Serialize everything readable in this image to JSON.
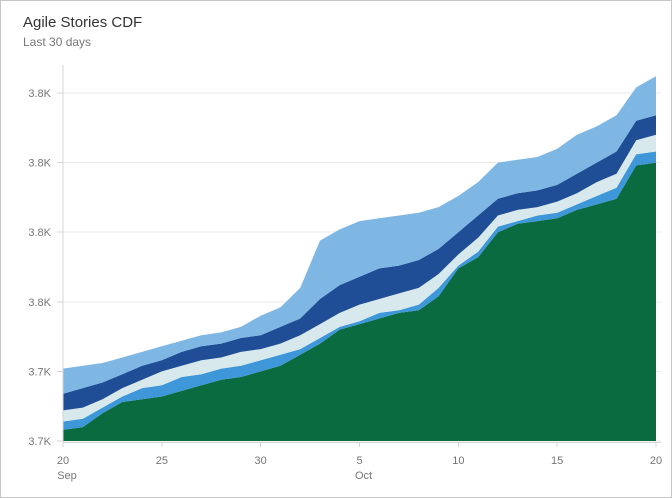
{
  "card": {
    "title": "Agile Stories CDF",
    "subtitle": "Last 30 days"
  },
  "chart_data": {
    "type": "area",
    "stacked": true,
    "title": "Agile Stories CDF",
    "subtitle": "Last 30 days",
    "legend": false,
    "grid": true,
    "x": [
      "Sep 20",
      "Sep 21",
      "Sep 22",
      "Sep 23",
      "Sep 24",
      "Sep 25",
      "Sep 26",
      "Sep 27",
      "Sep 28",
      "Sep 29",
      "Sep 30",
      "Oct 1",
      "Oct 2",
      "Oct 3",
      "Oct 4",
      "Oct 5",
      "Oct 6",
      "Oct 7",
      "Oct 8",
      "Oct 9",
      "Oct 10",
      "Oct 11",
      "Oct 12",
      "Oct 13",
      "Oct 14",
      "Oct 15",
      "Oct 16",
      "Oct 17",
      "Oct 18",
      "Oct 19",
      "Oct 20"
    ],
    "stacking": "cumulative_values are the running stacked totals of each band, bottom band first; baseline is y_axis.min",
    "series": [
      {
        "id": "band-1-dark-green",
        "color": "#0A6A40",
        "cumulative_values": [
          3704,
          3705,
          3710,
          3714,
          3715,
          3716,
          3718,
          3720,
          3722,
          3723,
          3725,
          3727,
          3731,
          3735,
          3740,
          3742,
          3744,
          3746,
          3747,
          3752,
          3762,
          3766,
          3775,
          3778,
          3779,
          3780,
          3783,
          3785,
          3787,
          3799,
          3800
        ]
      },
      {
        "id": "band-2-bright-blue",
        "color": "#3E97D9",
        "cumulative_values": [
          3707,
          3708,
          3712,
          3716,
          3719,
          3720,
          3723,
          3724,
          3726,
          3727,
          3729,
          3731,
          3733,
          3737,
          3741,
          3743,
          3746,
          3747,
          3749,
          3755,
          3763,
          3768,
          3777,
          3779,
          3781,
          3782,
          3785,
          3788,
          3791,
          3803,
          3804
        ]
      },
      {
        "id": "band-3-pale-blue",
        "color": "#D8E9EE",
        "cumulative_values": [
          3711,
          3712,
          3715,
          3719,
          3722,
          3725,
          3727,
          3729,
          3730,
          3732,
          3733,
          3735,
          3738,
          3742,
          3746,
          3749,
          3751,
          3753,
          3755,
          3760,
          3767,
          3773,
          3781,
          3783,
          3784,
          3786,
          3789,
          3793,
          3796,
          3808,
          3810
        ]
      },
      {
        "id": "band-4-dark-navy",
        "color": "#1F4E96",
        "cumulative_values": [
          3717,
          3719,
          3721,
          3724,
          3727,
          3729,
          3732,
          3734,
          3735,
          3737,
          3738,
          3741,
          3744,
          3751,
          3756,
          3759,
          3762,
          3763,
          3765,
          3769,
          3775,
          3781,
          3787,
          3789,
          3790,
          3792,
          3796,
          3800,
          3804,
          3815,
          3817
        ]
      },
      {
        "id": "band-5-sky-blue",
        "color": "#7EB6E4",
        "cumulative_values": [
          3726,
          3727,
          3728,
          3730,
          3732,
          3734,
          3736,
          3738,
          3739,
          3741,
          3745,
          3748,
          3755,
          3772,
          3776,
          3779,
          3780,
          3781,
          3782,
          3784,
          3788,
          3793,
          3800,
          3801,
          3802,
          3805,
          3810,
          3813,
          3817,
          3827,
          3831
        ]
      }
    ],
    "y_axis": {
      "min": 3700,
      "max": 3840,
      "gridline_values": [
        3700,
        3725,
        3750,
        3775,
        3800,
        3825
      ],
      "tick_labels_bottom_to_top": [
        "3.7K",
        "3.7K",
        "3.8K",
        "3.8K",
        "3.8K",
        "3.8K"
      ]
    },
    "x_axis": {
      "tick_indices": [
        0,
        5,
        10,
        15,
        20,
        25,
        30
      ],
      "tick_labels": [
        "20",
        "25",
        "30",
        "5",
        "10",
        "15",
        "20"
      ],
      "month_labels": [
        {
          "index": 0,
          "label": "Sep"
        },
        {
          "index": 15,
          "label": "Oct"
        }
      ]
    },
    "style_colors": {
      "gridline": "#e9e9e9",
      "axis_line": "#d4d4d4",
      "tick_label": "#767676"
    }
  }
}
